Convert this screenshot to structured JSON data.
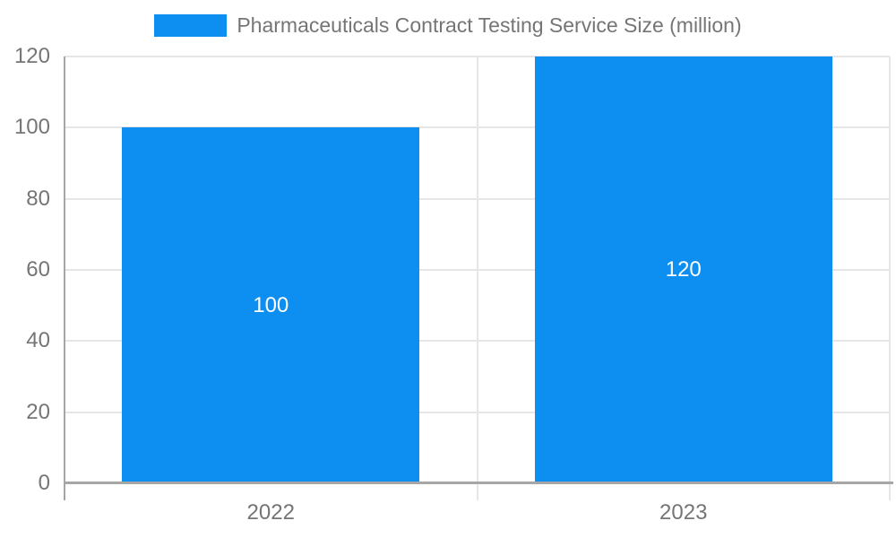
{
  "chart_data": {
    "type": "bar",
    "legend_label": "Pharmaceuticals Contract Testing Service Size (million)",
    "categories": [
      "2022",
      "2023"
    ],
    "values": [
      100,
      120
    ],
    "value_labels": [
      "100",
      "120"
    ],
    "yticks": [
      0,
      20,
      40,
      60,
      80,
      100,
      120
    ],
    "ytick_labels": [
      "0",
      "20",
      "40",
      "60",
      "80",
      "100",
      "120"
    ],
    "ylim": [
      0,
      120
    ],
    "xlabel": "",
    "ylabel": "",
    "grid": true,
    "legend_position": "top-center",
    "colors": {
      "bar": "#0d8ff2",
      "text": "#757575",
      "gridline": "#e6e6e6",
      "axis": "#a6a6a6",
      "bar_label": "#ffffff",
      "background": "#ffffff"
    }
  }
}
